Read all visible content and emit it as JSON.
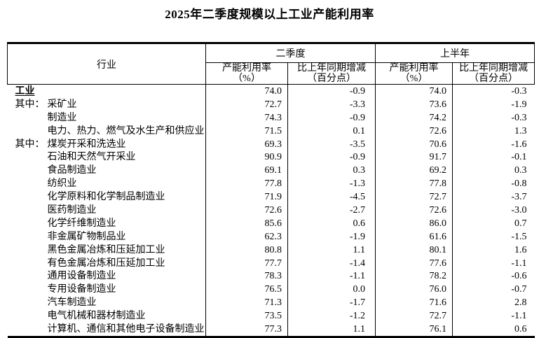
{
  "page": {
    "title": "2025年二季度规模以上工业产能利用率"
  },
  "table": {
    "col_industry": "行业",
    "group_q2": "二季度",
    "group_h1": "上半年",
    "sub_rate_line1": "产能利用率",
    "sub_rate_line2": "（%）",
    "sub_change_line1": "比上年同期增减",
    "sub_change_line2": "（百分点）",
    "rows": [
      {
        "prefix": "",
        "name": "工业",
        "q2_rate": "74.0",
        "q2_change": "-0.9",
        "h1_rate": "74.0",
        "h1_change": "-0.3",
        "emphasis": true,
        "indent": false
      },
      {
        "prefix": "其中：",
        "name": "采矿业",
        "q2_rate": "72.7",
        "q2_change": "-3.3",
        "h1_rate": "73.6",
        "h1_change": "-1.9",
        "emphasis": false,
        "indent": true
      },
      {
        "prefix": "",
        "name": "制造业",
        "q2_rate": "74.3",
        "q2_change": "-0.9",
        "h1_rate": "74.2",
        "h1_change": "-0.3",
        "emphasis": false,
        "indent": true
      },
      {
        "prefix": "",
        "name": "电力、热力、燃气及水生产和供应业",
        "q2_rate": "71.5",
        "q2_change": "0.1",
        "h1_rate": "72.6",
        "h1_change": "1.3",
        "emphasis": false,
        "indent": true
      },
      {
        "prefix": "其中：",
        "name": "煤炭开采和洗选业",
        "q2_rate": "69.3",
        "q2_change": "-3.5",
        "h1_rate": "70.6",
        "h1_change": "-1.6",
        "emphasis": false,
        "indent": true
      },
      {
        "prefix": "",
        "name": "石油和天然气开采业",
        "q2_rate": "90.9",
        "q2_change": "-0.9",
        "h1_rate": "91.7",
        "h1_change": "-0.1",
        "emphasis": false,
        "indent": true
      },
      {
        "prefix": "",
        "name": "食品制造业",
        "q2_rate": "69.1",
        "q2_change": "0.3",
        "h1_rate": "69.2",
        "h1_change": "0.3",
        "emphasis": false,
        "indent": true
      },
      {
        "prefix": "",
        "name": "纺织业",
        "q2_rate": "77.8",
        "q2_change": "-1.3",
        "h1_rate": "77.8",
        "h1_change": "-0.8",
        "emphasis": false,
        "indent": true
      },
      {
        "prefix": "",
        "name": "化学原料和化学制品制造业",
        "q2_rate": "71.9",
        "q2_change": "-4.5",
        "h1_rate": "72.7",
        "h1_change": "-3.7",
        "emphasis": false,
        "indent": true
      },
      {
        "prefix": "",
        "name": "医药制造业",
        "q2_rate": "72.6",
        "q2_change": "-2.7",
        "h1_rate": "72.6",
        "h1_change": "-3.0",
        "emphasis": false,
        "indent": true
      },
      {
        "prefix": "",
        "name": "化学纤维制造业",
        "q2_rate": "85.6",
        "q2_change": "0.6",
        "h1_rate": "86.0",
        "h1_change": "0.7",
        "emphasis": false,
        "indent": true
      },
      {
        "prefix": "",
        "name": "非金属矿物制品业",
        "q2_rate": "62.3",
        "q2_change": "-1.9",
        "h1_rate": "61.6",
        "h1_change": "-1.5",
        "emphasis": false,
        "indent": true
      },
      {
        "prefix": "",
        "name": "黑色金属冶炼和压延加工业",
        "q2_rate": "80.8",
        "q2_change": "1.1",
        "h1_rate": "80.1",
        "h1_change": "1.6",
        "emphasis": false,
        "indent": true
      },
      {
        "prefix": "",
        "name": "有色金属冶炼和压延加工业",
        "q2_rate": "77.7",
        "q2_change": "-1.4",
        "h1_rate": "77.6",
        "h1_change": "-1.1",
        "emphasis": false,
        "indent": true
      },
      {
        "prefix": "",
        "name": "通用设备制造业",
        "q2_rate": "78.3",
        "q2_change": "-1.1",
        "h1_rate": "78.2",
        "h1_change": "-0.6",
        "emphasis": false,
        "indent": true
      },
      {
        "prefix": "",
        "name": "专用设备制造业",
        "q2_rate": "76.5",
        "q2_change": "0.0",
        "h1_rate": "76.0",
        "h1_change": "-0.7",
        "emphasis": false,
        "indent": true
      },
      {
        "prefix": "",
        "name": "汽车制造业",
        "q2_rate": "71.3",
        "q2_change": "-1.7",
        "h1_rate": "71.6",
        "h1_change": "2.8",
        "emphasis": false,
        "indent": true
      },
      {
        "prefix": "",
        "name": "电气机械和器材制造业",
        "q2_rate": "73.5",
        "q2_change": "-1.2",
        "h1_rate": "72.7",
        "h1_change": "-1.1",
        "emphasis": false,
        "indent": true
      },
      {
        "prefix": "",
        "name": "计算机、通信和其他电子设备制造业",
        "q2_rate": "77.3",
        "q2_change": "1.1",
        "h1_rate": "76.1",
        "h1_change": "0.6",
        "emphasis": false,
        "indent": true
      }
    ]
  }
}
